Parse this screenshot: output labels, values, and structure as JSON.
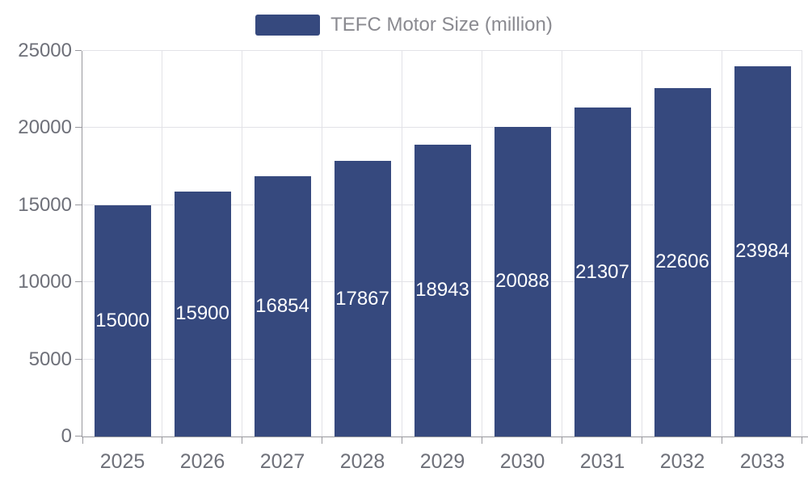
{
  "legend": {
    "label": "TEFC Motor Size (million)"
  },
  "chart_data": {
    "type": "bar",
    "title": "",
    "categories": [
      "2025",
      "2026",
      "2027",
      "2028",
      "2029",
      "2030",
      "2031",
      "2032",
      "2033"
    ],
    "series": [
      {
        "name": "TEFC Motor Size (million)",
        "values": [
          15000,
          15900,
          16854,
          17867,
          18943,
          20088,
          21307,
          22606,
          23984
        ]
      }
    ],
    "xlabel": "",
    "ylabel": "",
    "ylim": [
      0,
      25000
    ],
    "yticks": [
      0,
      5000,
      10000,
      15000,
      20000,
      25000
    ],
    "grid": true,
    "legend_position": "top",
    "value_labels": "inside-center",
    "colors": {
      "bar": "#36497e",
      "value_label": "#ffffff",
      "axis_line": "#98989e",
      "gridline": "#e2e2e7",
      "axis_text": "#6e7079",
      "legend_text": "#8a8a90",
      "background": "#ffffff"
    }
  }
}
